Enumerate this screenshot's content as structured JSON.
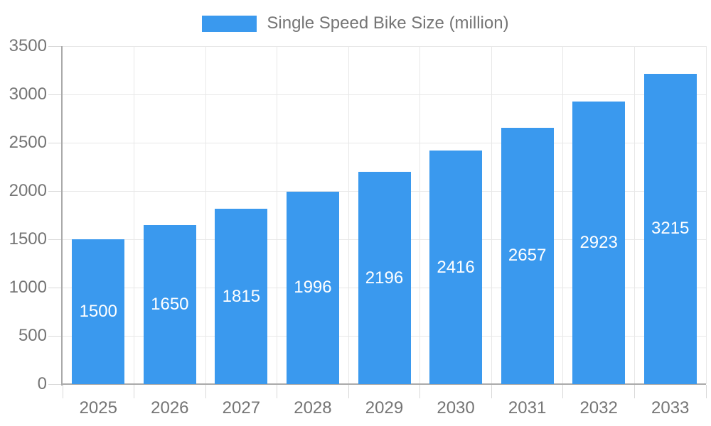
{
  "legend": {
    "label": "Single Speed Bike Size (million)"
  },
  "colors": {
    "bar": "#3A99EE",
    "bar_label": "#FFFFFF",
    "axis_text": "#757575",
    "legend_text": "#757575",
    "grid_line": "#E8E8E8",
    "tick_line": "#D9D9D9",
    "axis_line": "#AAAAAA",
    "background": "#FFFFFF"
  },
  "chart_data": {
    "type": "bar",
    "title": "",
    "categories": [
      "2025",
      "2026",
      "2027",
      "2028",
      "2029",
      "2030",
      "2031",
      "2032",
      "2033"
    ],
    "series": [
      {
        "name": "Single Speed Bike Size (million)",
        "values": [
          1500,
          1650,
          1815,
          1996,
          2196,
          2416,
          2657,
          2923,
          3215
        ]
      }
    ],
    "xlabel": "",
    "ylabel": "",
    "ylim": [
      0,
      3500
    ],
    "yticks": [
      0,
      500,
      1000,
      1500,
      2000,
      2500,
      3000,
      3500
    ],
    "grid": true,
    "legend_position": "top",
    "value_labels": "inside-middle"
  }
}
